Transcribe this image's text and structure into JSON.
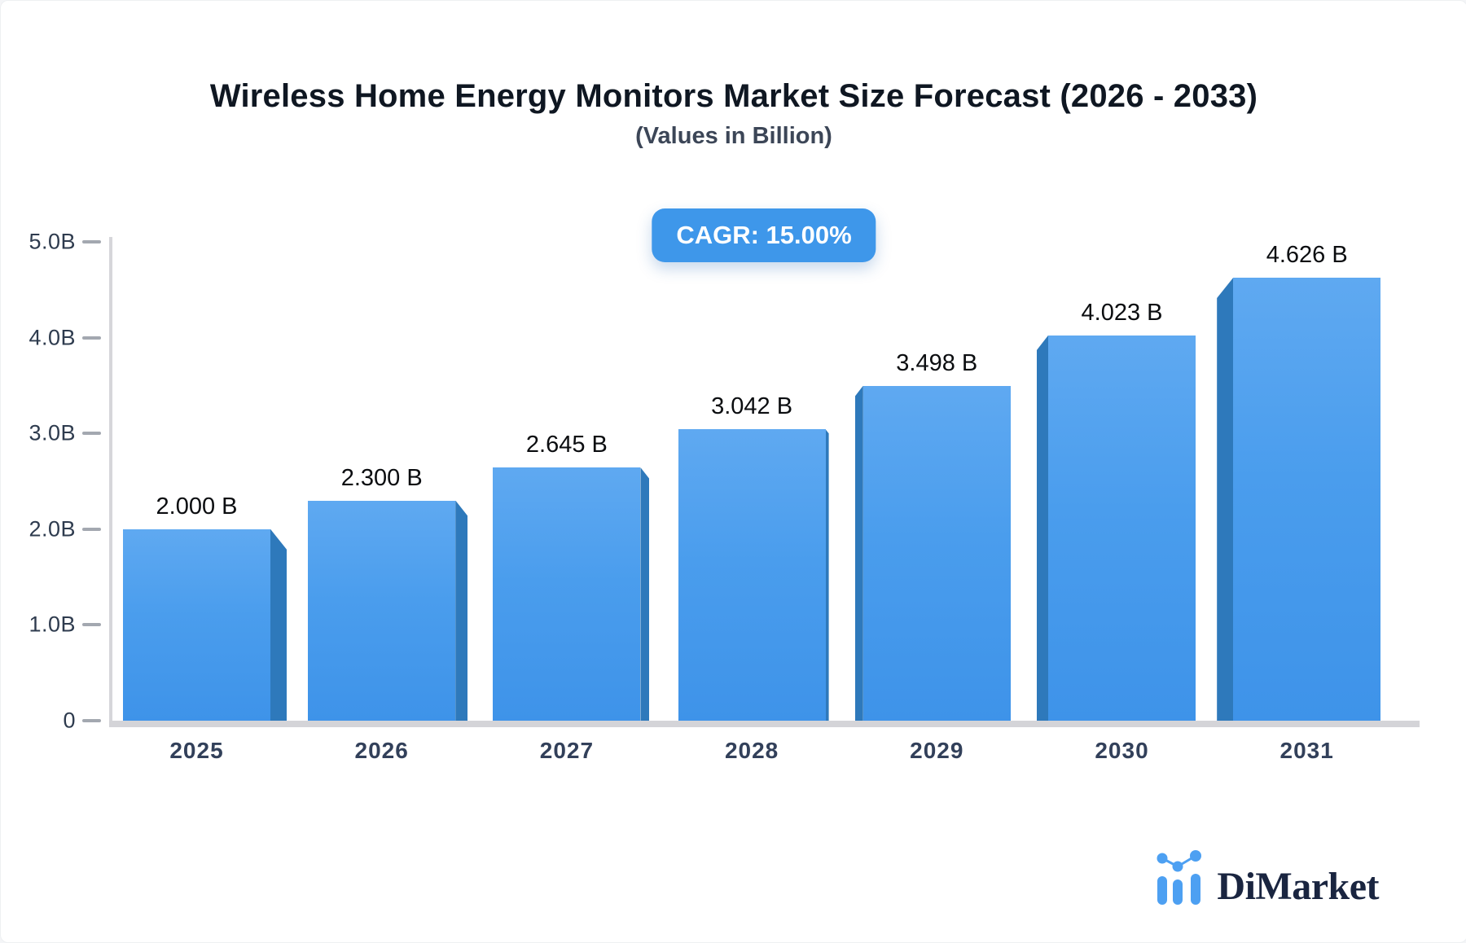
{
  "header": {
    "title": "Wireless Home Energy Monitors Market Size Forecast (2026 - 2033)",
    "subtitle": "(Values in Billion)"
  },
  "badge": {
    "label": "CAGR: 15.00%"
  },
  "brand": {
    "name": "DiMarket",
    "icon": "bar-chart-logo-icon"
  },
  "colors": {
    "bar_face": "#4a9ded",
    "bar_side": "#2e79bb",
    "badge_bg": "#3e97ea",
    "axis": "#d4d4d8",
    "tick_text": "#2e3b4e",
    "category_text": "#32405a",
    "brand_text": "#1a2540",
    "brand_icon": "#4da0f2"
  },
  "chart_data": {
    "type": "bar",
    "categories": [
      "2025",
      "2026",
      "2027",
      "2028",
      "2029",
      "2030",
      "2031"
    ],
    "values": [
      2.0,
      2.3,
      2.645,
      3.042,
      3.498,
      4.023,
      4.626
    ],
    "value_labels": [
      "2.000 B",
      "2.300 B",
      "2.645 B",
      "3.042 B",
      "3.498 B",
      "4.023 B",
      "4.626 B"
    ],
    "title": "Wireless Home Energy Monitors Market Size Forecast (2026 - 2033)",
    "subtitle": "(Values in Billion)",
    "annotation": "CAGR: 15.00%",
    "xlabel": "",
    "ylabel": "",
    "ylim": [
      0,
      5
    ],
    "y_ticks": [
      {
        "value": 0,
        "label": "0"
      },
      {
        "value": 1,
        "label": "1.0B"
      },
      {
        "value": 2,
        "label": "2.0B"
      },
      {
        "value": 3,
        "label": "3.0B"
      },
      {
        "value": 4,
        "label": "4.0B"
      },
      {
        "value": 5,
        "label": "5.0B"
      }
    ],
    "grid": false,
    "legend": "none",
    "bar_style": "3d"
  }
}
